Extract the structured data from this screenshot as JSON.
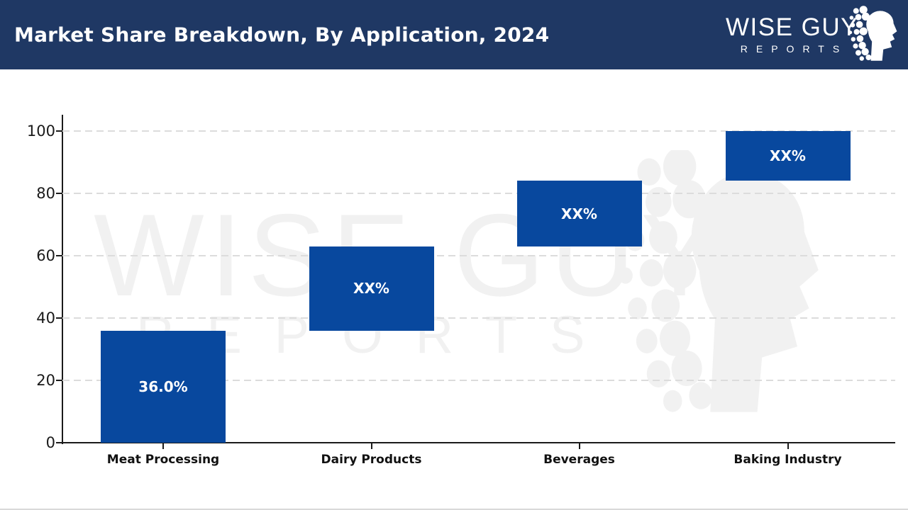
{
  "header": {
    "title": "Market Share Breakdown, By Application, 2024",
    "logo": {
      "name": "WISE GUY",
      "sub": "REPORTS"
    }
  },
  "watermark": {
    "line1": "WISE GUY",
    "line2": "REPORTS"
  },
  "colors": {
    "header_bg": "#1F3864",
    "bar": "#08489E",
    "grid": "#DCDCDC",
    "watermark": "#F1F1F1",
    "axis": "#1A1A1A",
    "title_text": "#FFFFFF",
    "bar_label_text": "#FFFFFF",
    "hairline": "#D9D9D9"
  },
  "chart_data": {
    "type": "bar",
    "subtype": "floating-segment-waterfall",
    "title": "Market Share Breakdown, By Application, 2024",
    "categories": [
      "Meat Processing",
      "Dairy Products",
      "Beverages",
      "Baking Industry"
    ],
    "bars": [
      {
        "category": "Meat Processing",
        "start": 0,
        "end": 36,
        "label": "36.0%"
      },
      {
        "category": "Dairy Products",
        "start": 36,
        "end": 63,
        "label": "XX%"
      },
      {
        "category": "Beverages",
        "start": 63,
        "end": 84,
        "label": "XX%"
      },
      {
        "category": "Baking Industry",
        "start": 84,
        "end": 100,
        "label": "XX%"
      }
    ],
    "xlabel": "",
    "ylabel": "",
    "ylim": [
      0,
      105
    ],
    "yticks": [
      0,
      20,
      40,
      60,
      80,
      100
    ],
    "grid": "horizontal-dashed",
    "legend": "none"
  }
}
